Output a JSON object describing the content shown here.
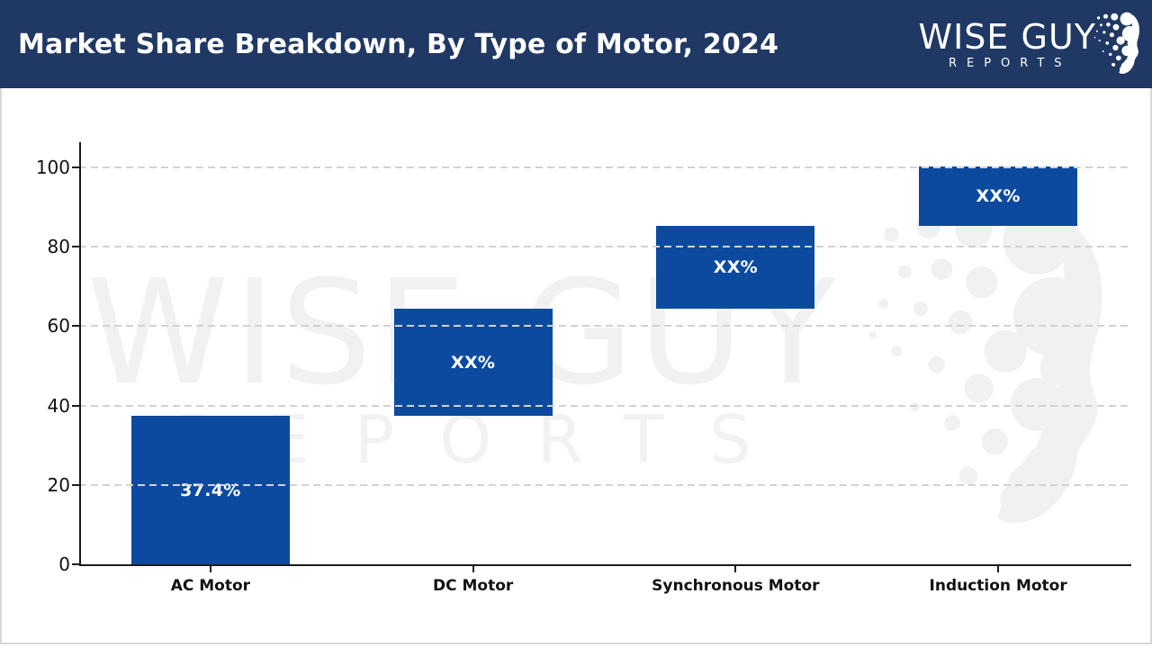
{
  "header": {
    "title": "Market Share Breakdown, By Type of Motor, 2024",
    "logo_line1": "WISE GUY",
    "logo_line2": "REPORTS",
    "background": "#1f3864"
  },
  "watermark": {
    "line1": "WISE GUY",
    "line2": "REPORTS"
  },
  "chart_data": {
    "type": "bar",
    "subtype": "floating-waterfall-segments",
    "title": "Market Share Breakdown, By Type of Motor, 2024",
    "xlabel": "",
    "ylabel": "",
    "categories": [
      "AC Motor",
      "DC Motor",
      "Synchronous Motor",
      "Induction Motor"
    ],
    "bars": [
      {
        "category": "AC Motor",
        "start": 0,
        "end": 37.4,
        "label": "37.4%"
      },
      {
        "category": "DC Motor",
        "start": 37.4,
        "end": 64.4,
        "label": "XX%"
      },
      {
        "category": "Synchronous Motor",
        "start": 64.4,
        "end": 85.3,
        "label": "XX%"
      },
      {
        "category": "Induction Motor",
        "start": 85.3,
        "end": 100.2,
        "label": "XX%"
      }
    ],
    "yticks": [
      0,
      20,
      40,
      60,
      80,
      100
    ],
    "ylim": [
      0,
      107
    ],
    "grid": "horizontal-dashed-over-bars",
    "legend": "none",
    "colors": {
      "bar": "#0b4a9f",
      "bar_label": "#ffffff",
      "grid": "#d2d2d2",
      "axis": "#1a1a1a",
      "tick_label": "#111111",
      "header_bg": "#1f3864",
      "watermark": "#ebebeb"
    }
  }
}
